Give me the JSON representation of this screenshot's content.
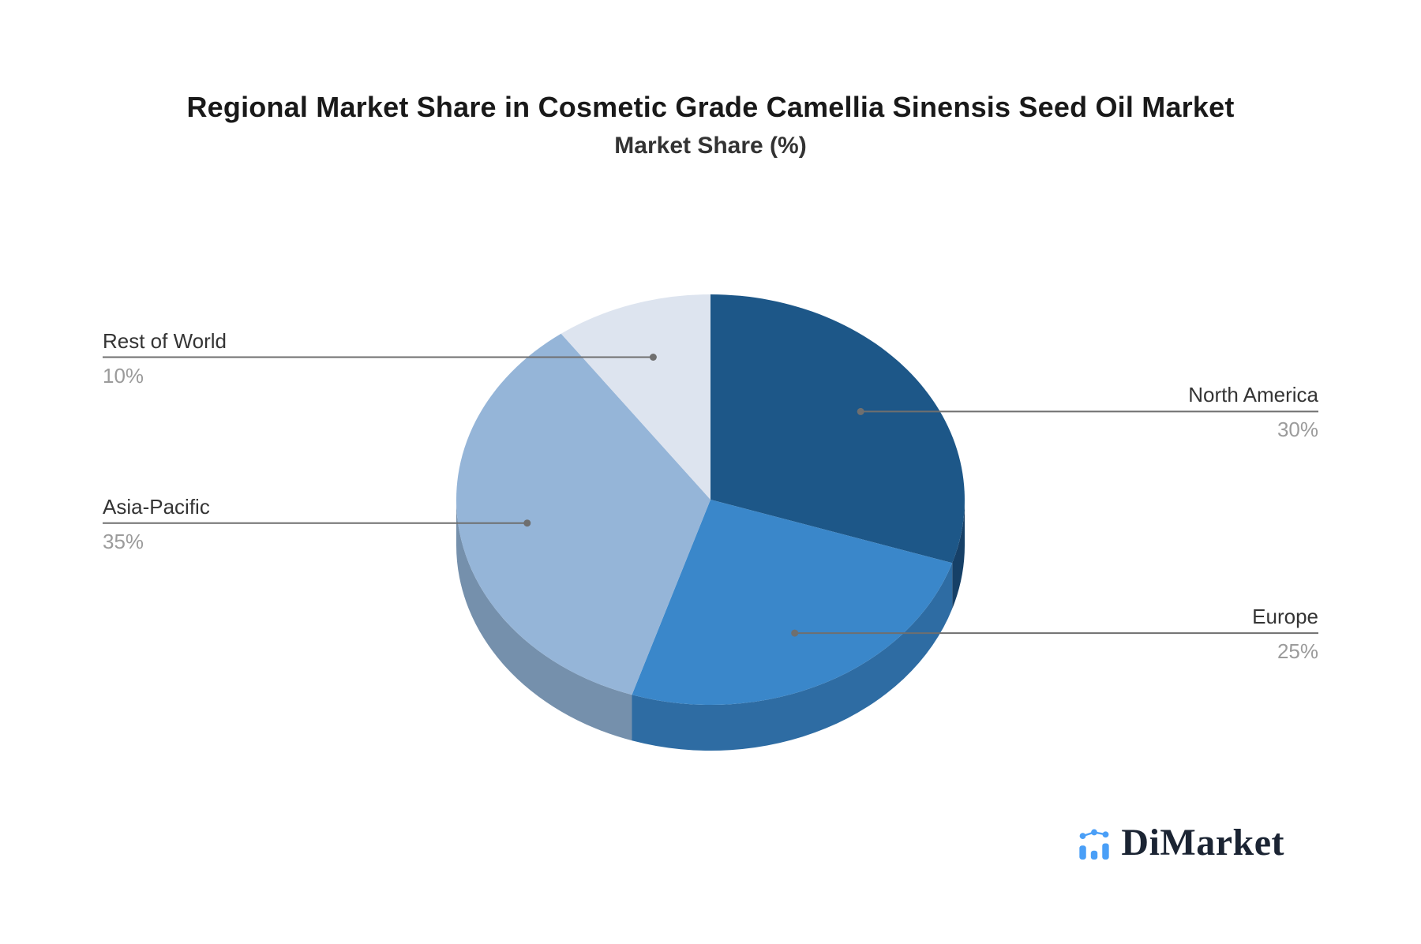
{
  "title": "Regional Market Share in Cosmetic Grade Camellia Sinensis Seed Oil Market",
  "subtitle": "Market Share (%)",
  "chart_data": {
    "type": "pie",
    "style": "3d",
    "title": "Regional Market Share in Cosmetic Grade Camellia Sinensis Seed Oil Market",
    "subtitle": "Market Share (%)",
    "unit": "%",
    "start_angle": "12 o'clock, clockwise",
    "legend_position": "callout labels with leader lines",
    "segments": [
      {
        "label": "North America",
        "value": 30,
        "display": "30%",
        "label_side": "right",
        "color": "#1d5788",
        "side_color": "#164067"
      },
      {
        "label": "Europe",
        "value": 25,
        "display": "25%",
        "label_side": "right",
        "color": "#3a87ca",
        "side_color": "#2e6ca3"
      },
      {
        "label": "Asia-Pacific",
        "value": 35,
        "display": "35%",
        "label_side": "left",
        "color": "#95b5d8",
        "side_color": "#7590ac"
      },
      {
        "label": "Rest of World",
        "value": 10,
        "display": "10%",
        "label_side": "left",
        "color": "#dde4ef",
        "side_color": "#b9c5d6"
      }
    ]
  },
  "logo": {
    "text": "DiMarket",
    "icon": "bar-chart-with-trendline-icon",
    "icon_color": "#4a9ff7",
    "text_color": "#1b2433"
  },
  "colors": {
    "background": "#ffffff",
    "leader_line": "#6f6f6f",
    "label_text": "#343434",
    "percent_text": "#9b9b9b",
    "title_text": "#191919",
    "subtitle_text": "#333333"
  }
}
